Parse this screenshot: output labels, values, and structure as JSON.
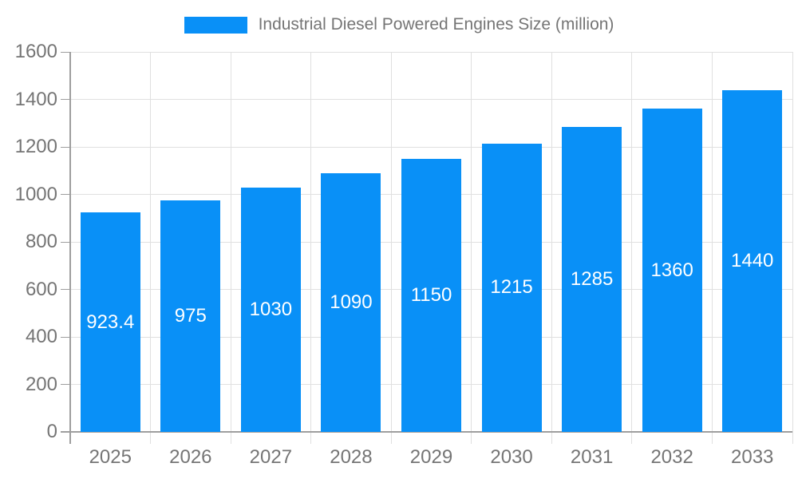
{
  "legend": {
    "label": "Industrial Diesel Powered Engines Size (million)",
    "swatch_color": "#0990f7"
  },
  "chart_data": {
    "type": "bar",
    "title": "Industrial Diesel Powered Engines Size (million)",
    "categories": [
      "2025",
      "2026",
      "2027",
      "2028",
      "2029",
      "2030",
      "2031",
      "2032",
      "2033"
    ],
    "series": [
      {
        "name": "Industrial Diesel Powered Engines Size (million)",
        "values": [
          923.4,
          975,
          1030,
          1090,
          1150,
          1215,
          1285,
          1360,
          1440
        ],
        "labels": [
          "923.4",
          "975",
          "1030",
          "1090",
          "1150",
          "1215",
          "1285",
          "1360",
          "1440"
        ],
        "color": "#0990f7"
      }
    ],
    "xlabel": "",
    "ylabel": "",
    "ylim": [
      0,
      1600
    ],
    "yticks": [
      0,
      200,
      400,
      600,
      800,
      1000,
      1200,
      1400,
      1600
    ],
    "grid": true,
    "legend_position": "top",
    "value_labels_position": "inside-center",
    "colors": {
      "bar": "#0990f7",
      "bar_label_text": "#ffffff",
      "grid": "#e0e0e0",
      "axis": "#9e9e9e",
      "tick_text": "#757575",
      "background": "#ffffff"
    }
  }
}
